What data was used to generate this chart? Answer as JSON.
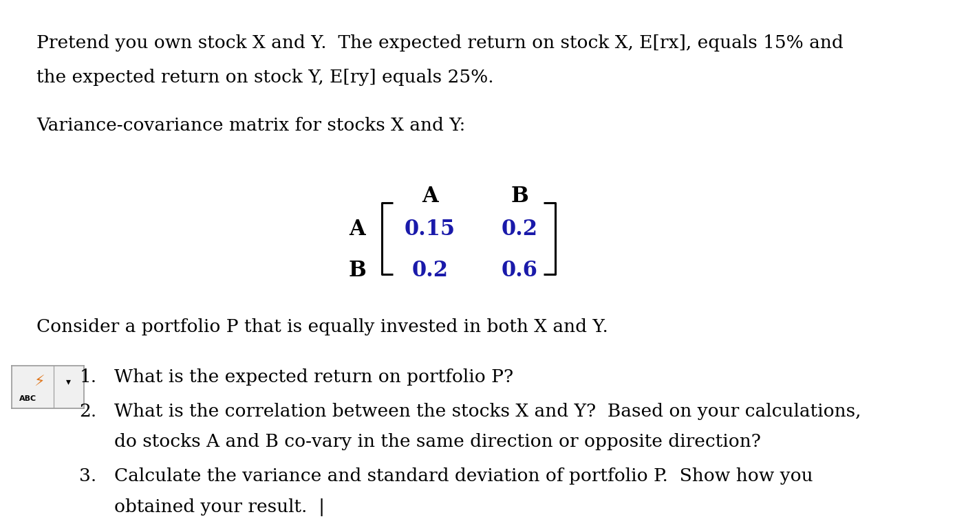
{
  "background_color": "#ffffff",
  "fig_width": 14.04,
  "fig_height": 7.71,
  "dpi": 100,
  "text_color": "#000000",
  "matrix_color": "#1a1aaa",
  "font_size_main": 19,
  "font_size_matrix": 22,
  "icon_box_color": "#f0f0f0",
  "icon_box_edge": "#999999",
  "icon_lightning_color": "#e07820",
  "icon_text_color": "#000000",
  "line1": "Pretend you own stock X and Y.  The expected return on stock X, E[rx], equals 15% and",
  "line2": "the expected return on stock Y, E[ry] equals 25%.",
  "para2": "Variance-covariance matrix for stocks X and Y:",
  "para3": "Consider a portfolio P that is equally invested in both X and Y.",
  "q1": "What is the expected return on portfolio P?",
  "q2a": "What is the correlation between the stocks X and Y?  Based on your calculations,",
  "q2b": "do stocks A and B co-vary in the same direction or opposite direction?",
  "q3a": "Calculate the variance and standard deviation of portfolio P.  Show how you",
  "q3b": "obtained your result.  |"
}
